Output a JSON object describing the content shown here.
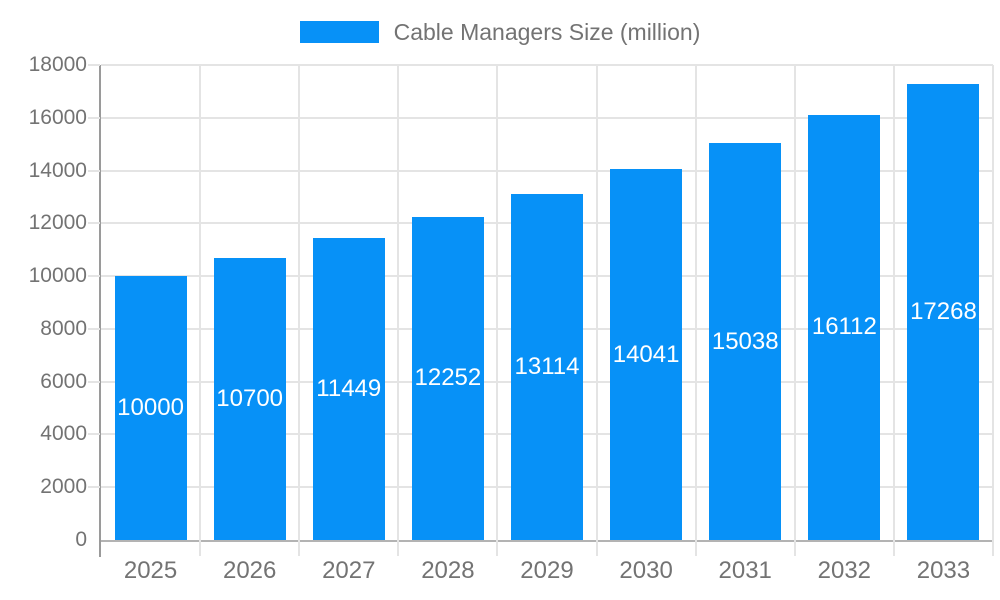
{
  "legend": {
    "label": "Cable Managers Size (million)"
  },
  "colors": {
    "background": "#ffffff",
    "bar": "#0791f7",
    "grid": "#e4e4e4",
    "axis_y": "#9a9a9a",
    "axis_x": "#b3b3b3",
    "text": "#737373",
    "bar_label": "#ffffff"
  },
  "chart_data": {
    "type": "bar",
    "title": "Cable Managers Size (million)",
    "categories": [
      "2025",
      "2026",
      "2027",
      "2028",
      "2029",
      "2030",
      "2031",
      "2032",
      "2033"
    ],
    "values": [
      10000,
      10700,
      11449,
      12252,
      13114,
      14041,
      15038,
      16112,
      17268
    ],
    "xlabel": "",
    "ylabel": "",
    "ylim": [
      0,
      18000
    ],
    "ytick_step": 2000,
    "grid": true,
    "legend_entries": [
      "Cable Managers Size (million)"
    ],
    "legend_position": "top-center",
    "value_labels": "inside, vertically centered, white"
  }
}
